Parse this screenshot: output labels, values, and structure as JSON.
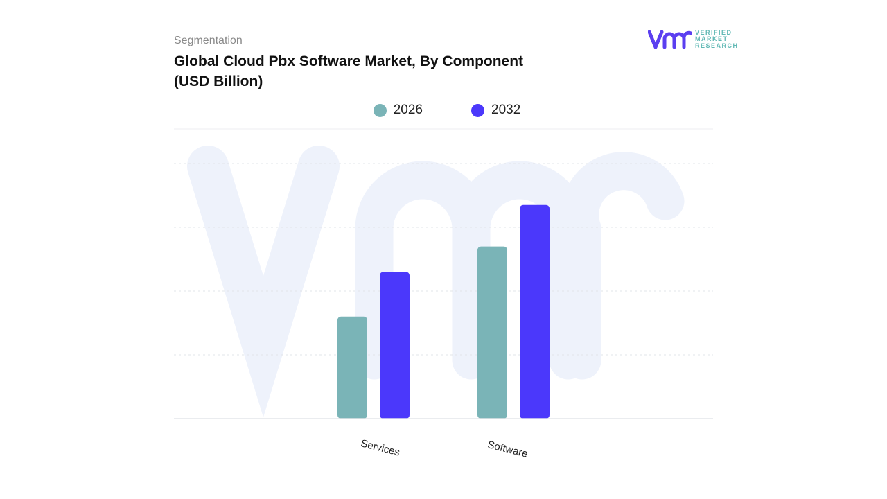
{
  "header": {
    "segment_label": "Segmentation",
    "title": "Global Cloud Pbx Software Market, By Component (USD Billion)"
  },
  "logo": {
    "mark": "vmr",
    "text": [
      "VERIFIED",
      "MARKET",
      "RESEARCH"
    ]
  },
  "colors": {
    "series_2026": "#7ab4b7",
    "series_2032": "#4b38fb",
    "watermark": "#eef2fb",
    "logo_purple": "#5b3ff0",
    "logo_teal": "#5fb8b4"
  },
  "chart_data": {
    "type": "bar",
    "title": "Global Cloud Pbx Software Market, By Component (USD Billion)",
    "categories": [
      "Services",
      "Software"
    ],
    "series": [
      {
        "name": "2026",
        "values": [
          1.6,
          2.7
        ]
      },
      {
        "name": "2032",
        "values": [
          2.3,
          3.35
        ]
      }
    ],
    "ylim": [
      0,
      4.5
    ],
    "grid": true,
    "legend_position": "top-center",
    "xlabel": "",
    "ylabel": ""
  }
}
